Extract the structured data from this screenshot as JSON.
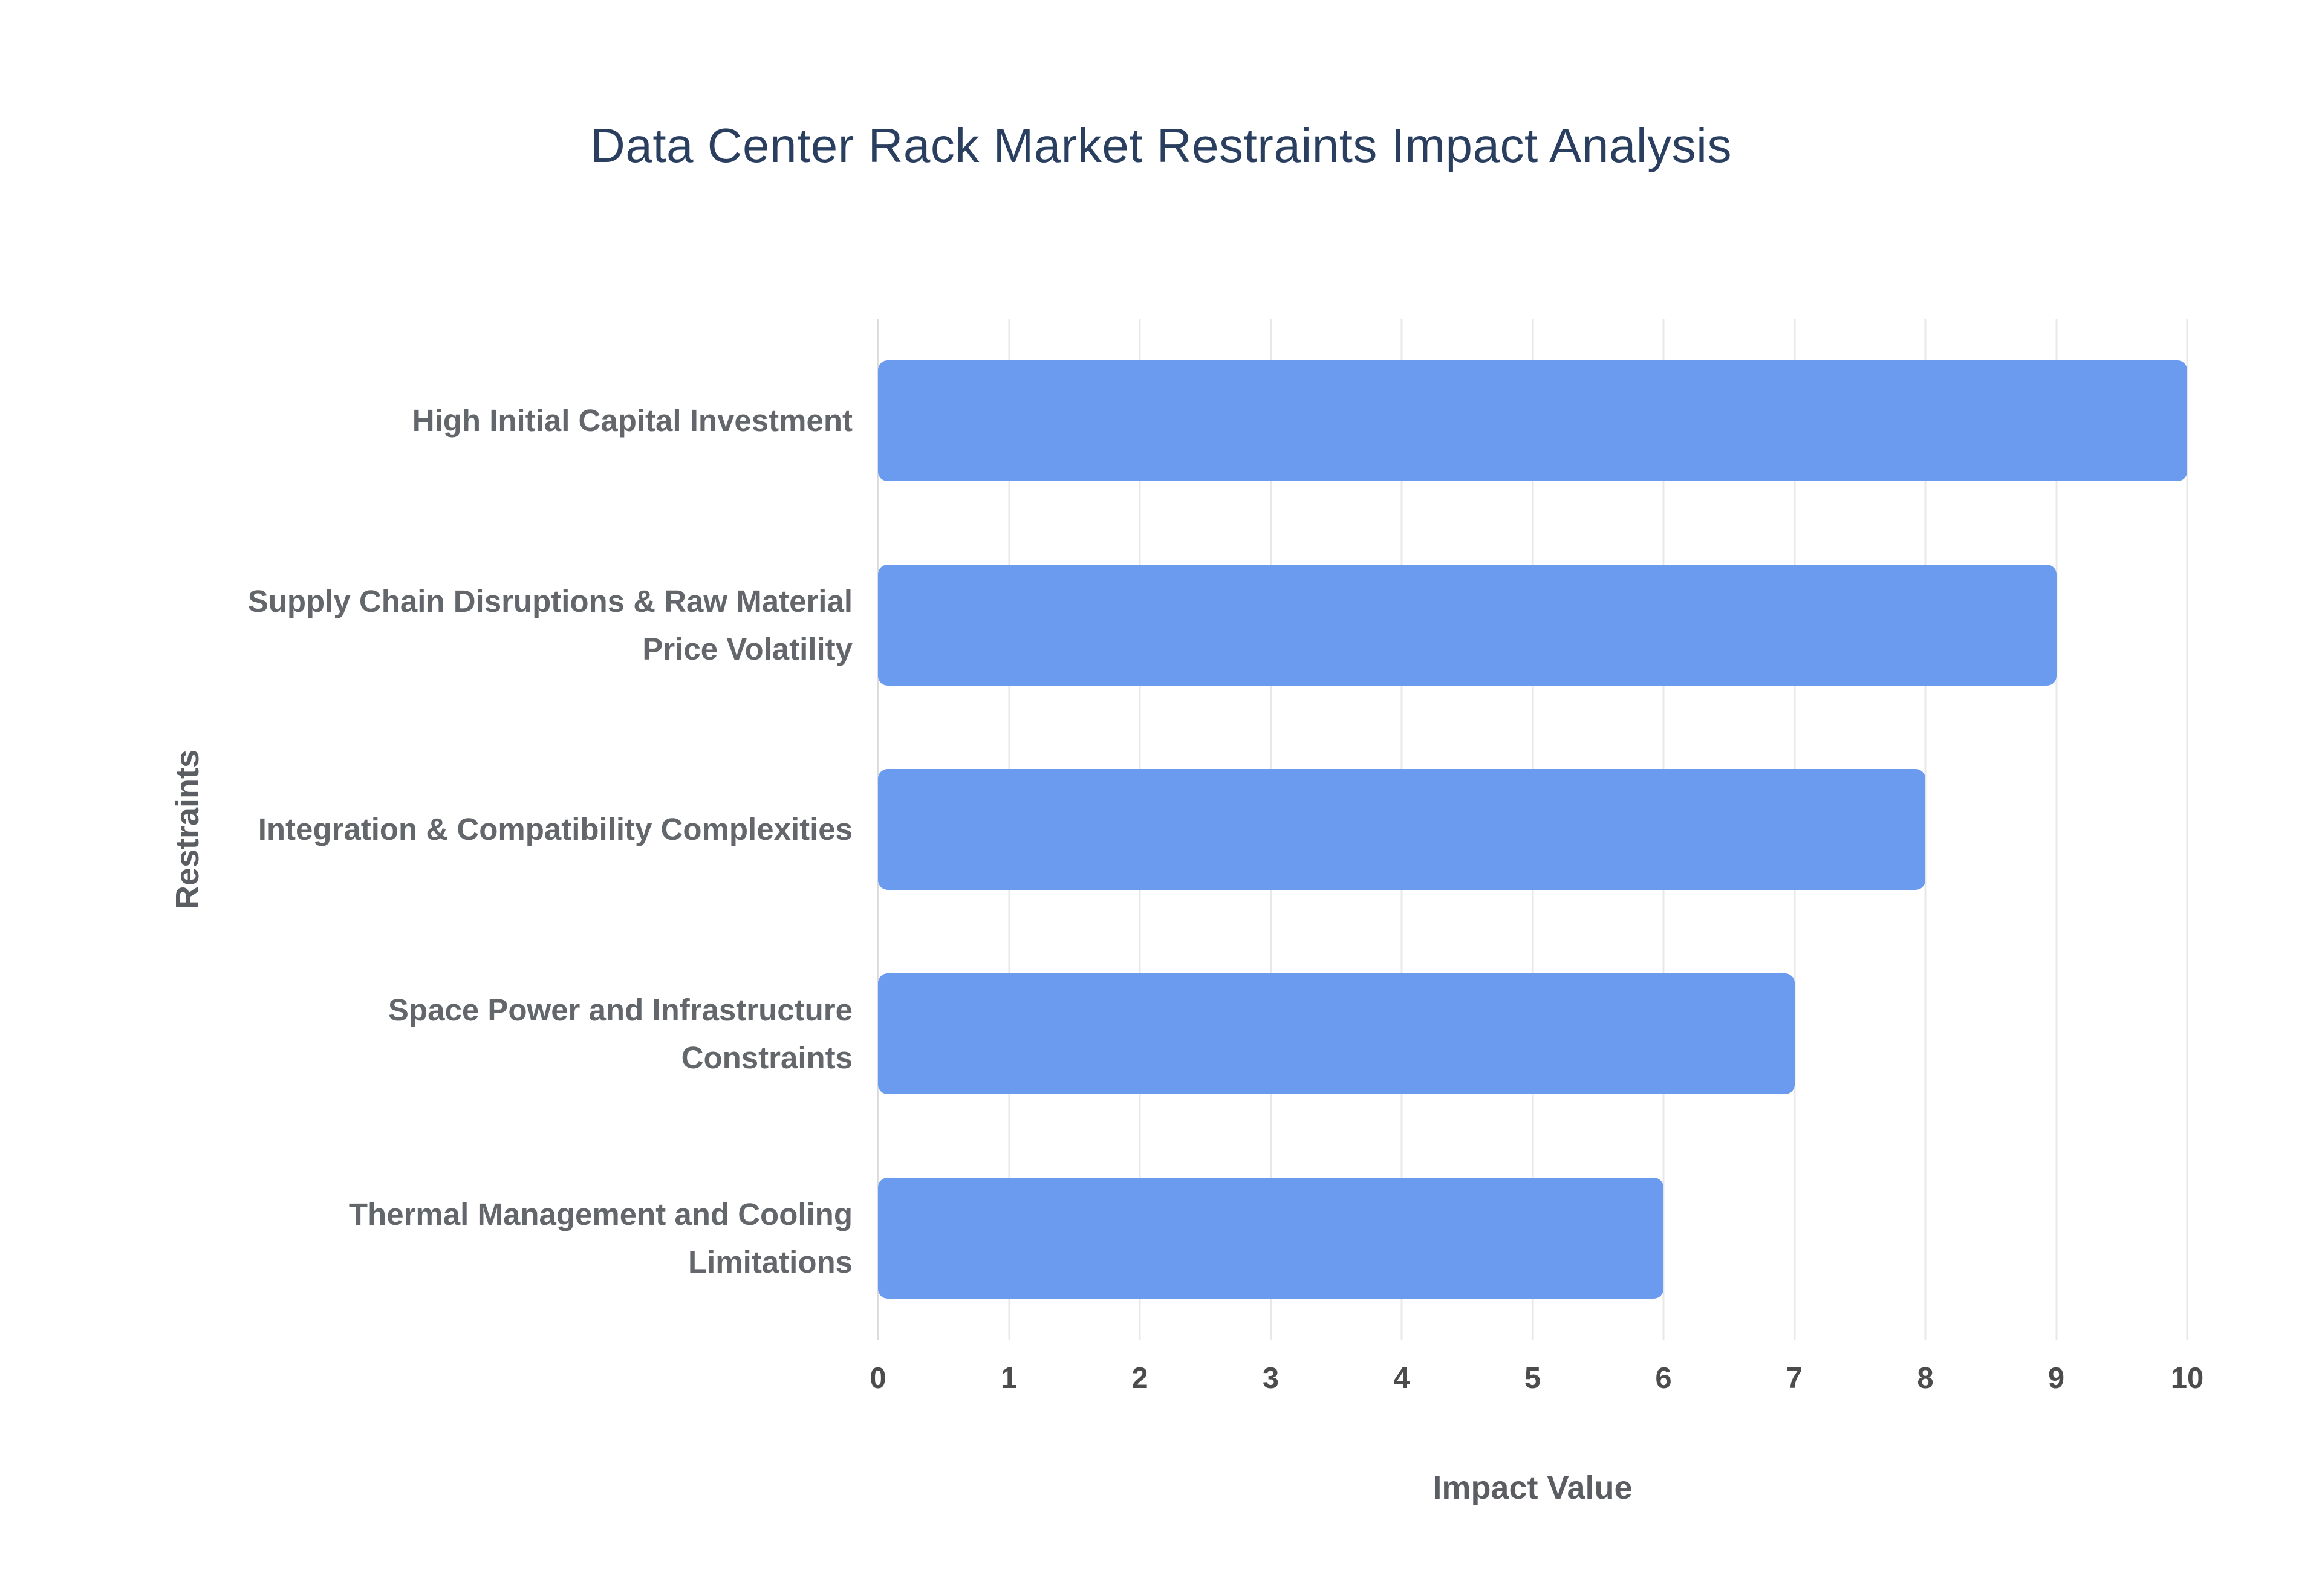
{
  "chart_data": {
    "type": "bar",
    "orientation": "horizontal",
    "title": "Data Center Rack Market Restraints Impact Analysis",
    "xlabel": "Impact Value",
    "ylabel": "Restraints",
    "categories": [
      "High Initial Capital Investment",
      "Supply Chain Disruptions & Raw Material Price Volatility",
      "Integration & Compatibility Complexities",
      "Space Power and Infrastructure Constraints",
      "Thermal Management and Cooling Limitations"
    ],
    "values": [
      10,
      9,
      8,
      7,
      6
    ],
    "xlim": [
      0,
      10
    ],
    "xticks": [
      0,
      1,
      2,
      3,
      4,
      5,
      6,
      7,
      8,
      9,
      10
    ],
    "grid": true,
    "legend": "none",
    "bar_color": "#6A9BEE",
    "gridline_color": "#E8E8E8",
    "title_color": "#2A3F5F",
    "category_label_color": "#63676B",
    "tick_label_color": "#4C4C4C",
    "axis_title_color": "#5A5E63",
    "background_color": "#FFFFFF"
  }
}
